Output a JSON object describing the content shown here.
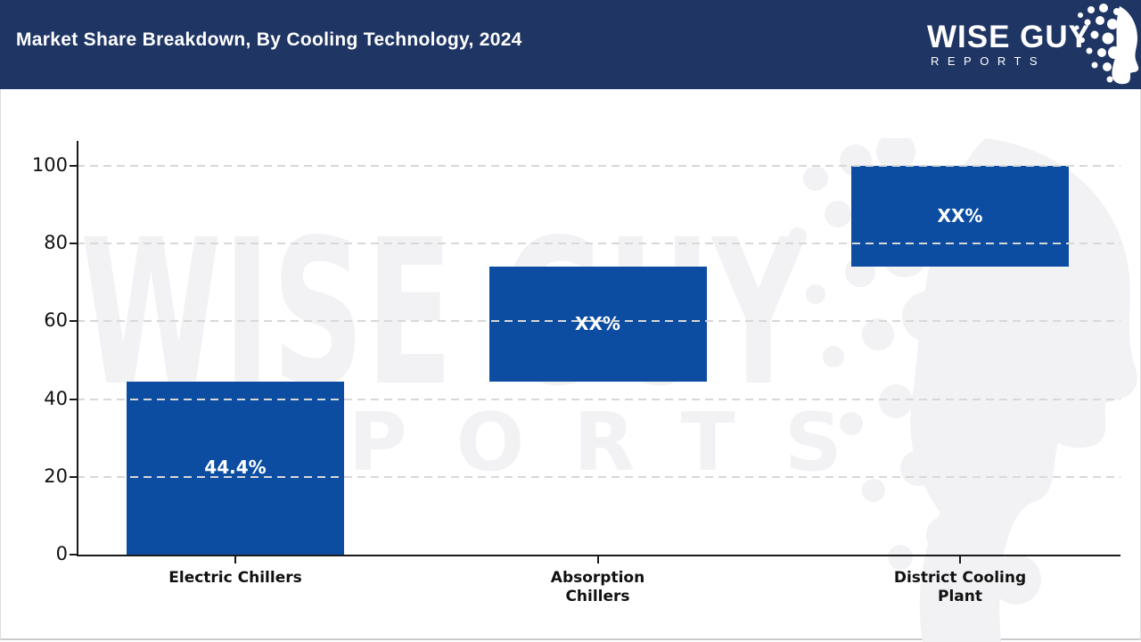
{
  "header": {
    "title": "Market Share Breakdown, By Cooling Technology, 2024",
    "logo": {
      "line1": "WISE GUY",
      "line2": "REPORTS"
    }
  },
  "watermark": {
    "line1": "WISE GUY",
    "line2": "REPORTS"
  },
  "chart_data": {
    "type": "bar",
    "subtype": "floating-segment-breakdown",
    "title": "Market Share Breakdown, By Cooling Technology, 2024",
    "categories": [
      "Electric Chillers",
      "Absorption Chillers",
      "District Cooling Plant"
    ],
    "category_label_lines": [
      [
        "Electric Chillers"
      ],
      [
        "Absorption",
        "Chillers"
      ],
      [
        "District Cooling",
        "Plant"
      ]
    ],
    "segments": [
      {
        "category": "Electric Chillers",
        "start": 0,
        "end": 44.4,
        "label": "44.4%"
      },
      {
        "category": "Absorption Chillers",
        "start": 44.4,
        "end": 74,
        "label": "XX%"
      },
      {
        "category": "District Cooling Plant",
        "start": 74,
        "end": 100,
        "label": "XX%"
      }
    ],
    "ylim": [
      0,
      100
    ],
    "yticks": [
      0,
      20,
      40,
      60,
      80,
      100
    ],
    "grid": "horizontal dashed, drawn over bars",
    "legend": "none",
    "xlabel": "",
    "ylabel": "",
    "bar_color": "#0c4da2",
    "bar_label_color": "#ffffff",
    "axis_color": "#1a1a1a",
    "grid_color": "#d8d8d8",
    "header_bg_color": "#1f3564",
    "watermark_color": "#f2f2f4"
  }
}
